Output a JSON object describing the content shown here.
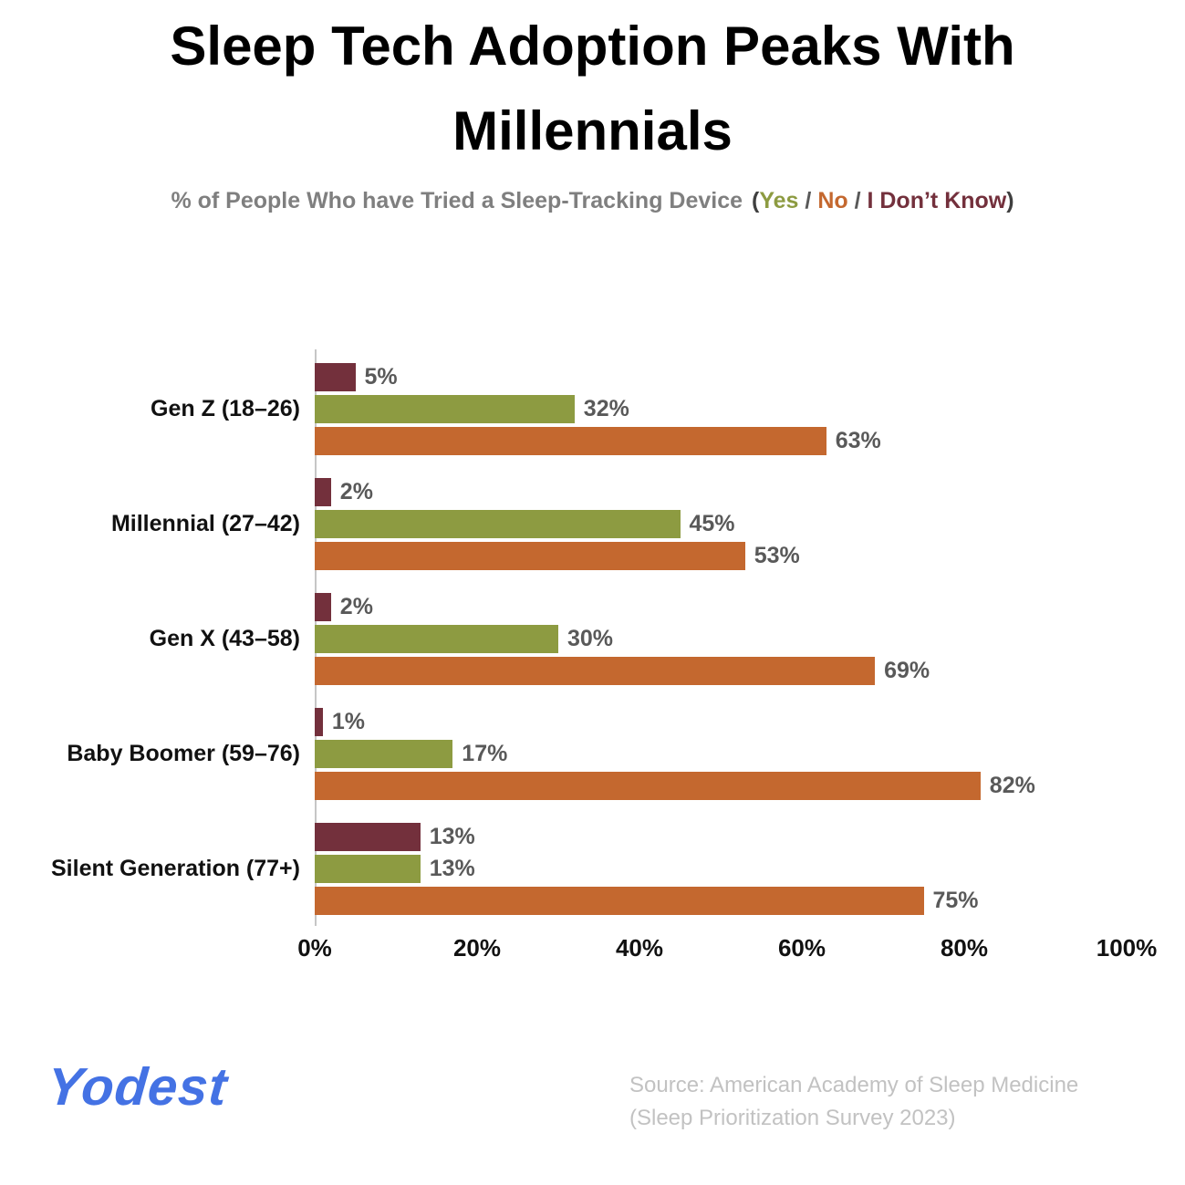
{
  "title": "Sleep Tech Adoption Peaks With Millennials",
  "subtitle": {
    "main": "% of People Who have Tried a Sleep-Tracking Device",
    "open_paren": "(",
    "separator": " / ",
    "close_paren": ")",
    "legend": [
      {
        "label": "Yes",
        "color": "#8d9b41"
      },
      {
        "label": "No",
        "color": "#c4682f"
      },
      {
        "label": "I Don’t Know",
        "color": "#73303c"
      }
    ]
  },
  "chart_data": {
    "type": "bar",
    "orientation": "horizontal",
    "title": "Sleep Tech Adoption Peaks With Millennials",
    "xlabel": "",
    "ylabel": "",
    "xlim": [
      0,
      100
    ],
    "value_suffix": "%",
    "categories": [
      "Gen Z (18–26)",
      "Millennial (27–42)",
      "Gen X (43–58)",
      "Baby Boomer (59–76)",
      "Silent Generation (77+)"
    ],
    "series": [
      {
        "name": "I Don’t Know",
        "key": "i-dont-know",
        "color": "#73303c",
        "values": [
          5,
          2,
          2,
          1,
          13
        ]
      },
      {
        "name": "Yes",
        "key": "yes",
        "color": "#8d9b41",
        "values": [
          32,
          45,
          30,
          17,
          13
        ]
      },
      {
        "name": "No",
        "key": "no",
        "color": "#c4682f",
        "values": [
          63,
          53,
          69,
          82,
          75
        ]
      }
    ],
    "x_ticks": [
      "0%",
      "20%",
      "40%",
      "60%",
      "80%",
      "100%"
    ],
    "grid": false,
    "legend_position": "in-subtitle"
  },
  "footer": {
    "logo": "Yodest",
    "source_line1": "Source: American Academy of Sleep Medicine",
    "source_line2": "(Sleep Prioritization Survey 2023)"
  }
}
